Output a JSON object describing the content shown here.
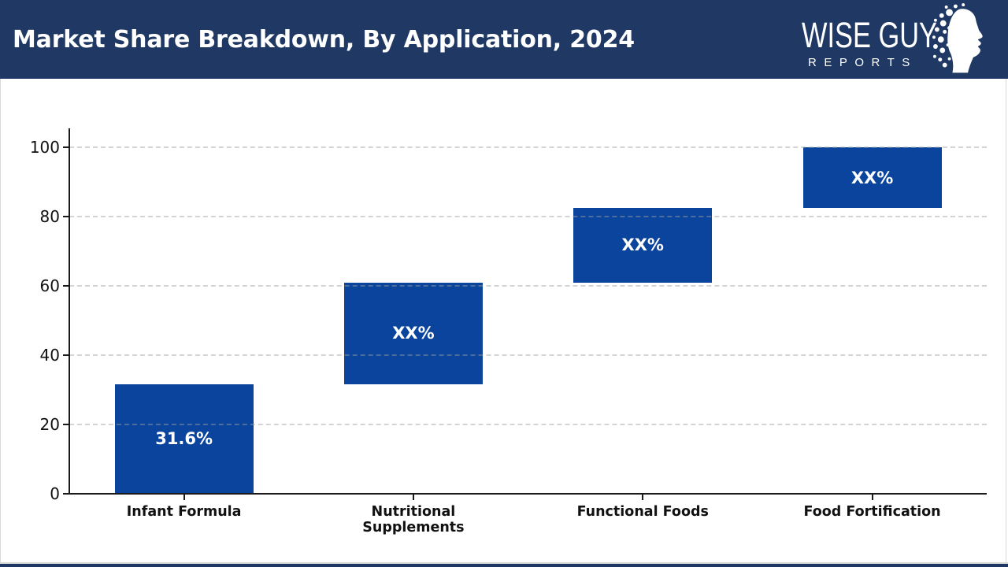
{
  "header": {
    "title": "Market Share Breakdown, By Application, 2024",
    "logo": {
      "line1": "WISE GUY",
      "line2": "REPORTS"
    }
  },
  "watermark": {
    "line1": "WISE GUY",
    "line2": "REPORTS"
  },
  "chart_data": {
    "type": "bar",
    "subtype": "stacked-waterfall-share",
    "title": "Market Share Breakdown, By Application, 2024",
    "categories": [
      "Infant Formula",
      "Nutritional Supplements",
      "Functional Foods",
      "Food Fortification"
    ],
    "segments": [
      {
        "category": "Infant Formula",
        "start": 0,
        "end": 31.6,
        "value": 31.6,
        "label": "31.6%"
      },
      {
        "category": "Nutritional Supplements",
        "start": 31.6,
        "end": 61.0,
        "value": 29.4,
        "label": "XX%"
      },
      {
        "category": "Functional Foods",
        "start": 61.0,
        "end": 82.5,
        "value": 21.5,
        "label": "XX%"
      },
      {
        "category": "Food Fortification",
        "start": 82.5,
        "end": 100.0,
        "value": 17.5,
        "label": "XX%"
      }
    ],
    "y_ticks": [
      0,
      20,
      40,
      60,
      80,
      100
    ],
    "ylim": [
      0,
      105
    ],
    "xlabel": "",
    "ylabel": "",
    "grid": "horizontal-dashed",
    "legend": "none",
    "bar_color": "#0a449c",
    "value_label_color": "#ffffff"
  },
  "colors": {
    "header_bg": "#1f3864",
    "footer_bg": "#1f3864",
    "bar": "#0a449c",
    "axis": "#1a1a1a",
    "grid": "#c8c8c8",
    "watermark": "#f1f1f1",
    "title_text": "#ffffff"
  }
}
